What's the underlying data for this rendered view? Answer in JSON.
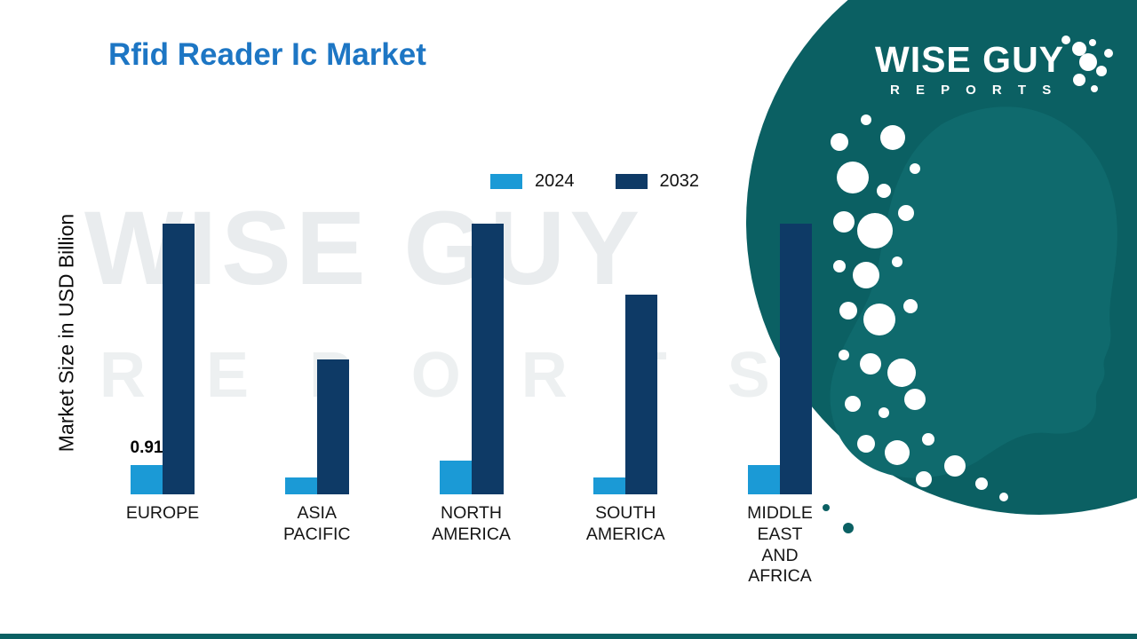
{
  "page": {
    "title": "Rfid Reader Ic Market"
  },
  "y_axis_label": "Market Size in USD Billion",
  "watermark": {
    "line1": "WISE GUY",
    "line2": "R E P O R T S"
  },
  "logo": {
    "brand": "WISE GUY",
    "sub": "R E P O R T S"
  },
  "colors": {
    "title_blue": "#1d76c4",
    "teal": "#0b6063",
    "bar_2024": "#1b9ad6",
    "bar_2032": "#0e3a66",
    "watermark_gray": "#e9ecee"
  },
  "chart_data": {
    "type": "bar",
    "title": "Rfid Reader Ic Market",
    "xlabel": "",
    "ylabel": "Market Size in USD Billion",
    "categories": [
      "EUROPE",
      "ASIA PACIFIC",
      "NORTH AMERICA",
      "SOUTH AMERICA",
      "MIDDLE EAST AND AFRICA"
    ],
    "category_label_lines": [
      [
        "EUROPE"
      ],
      [
        "ASIA",
        "PACIFIC"
      ],
      [
        "NORTH",
        "AMERICA"
      ],
      [
        "SOUTH",
        "AMERICA"
      ],
      [
        "MIDDLE",
        "EAST",
        "AND",
        "AFRICA"
      ]
    ],
    "series": [
      {
        "name": "2024",
        "color": "#1b9ad6",
        "values": [
          0.91,
          0.52,
          1.05,
          0.52,
          0.91
        ]
      },
      {
        "name": "2032",
        "color": "#0e3a66",
        "values": [
          8.4,
          4.2,
          8.4,
          6.2,
          8.4
        ]
      }
    ],
    "data_labels": [
      {
        "series": "2024",
        "category": "EUROPE",
        "text": "0.91"
      }
    ],
    "ylim": [
      0,
      9
    ],
    "grid": false,
    "legend_position": "top-center"
  }
}
